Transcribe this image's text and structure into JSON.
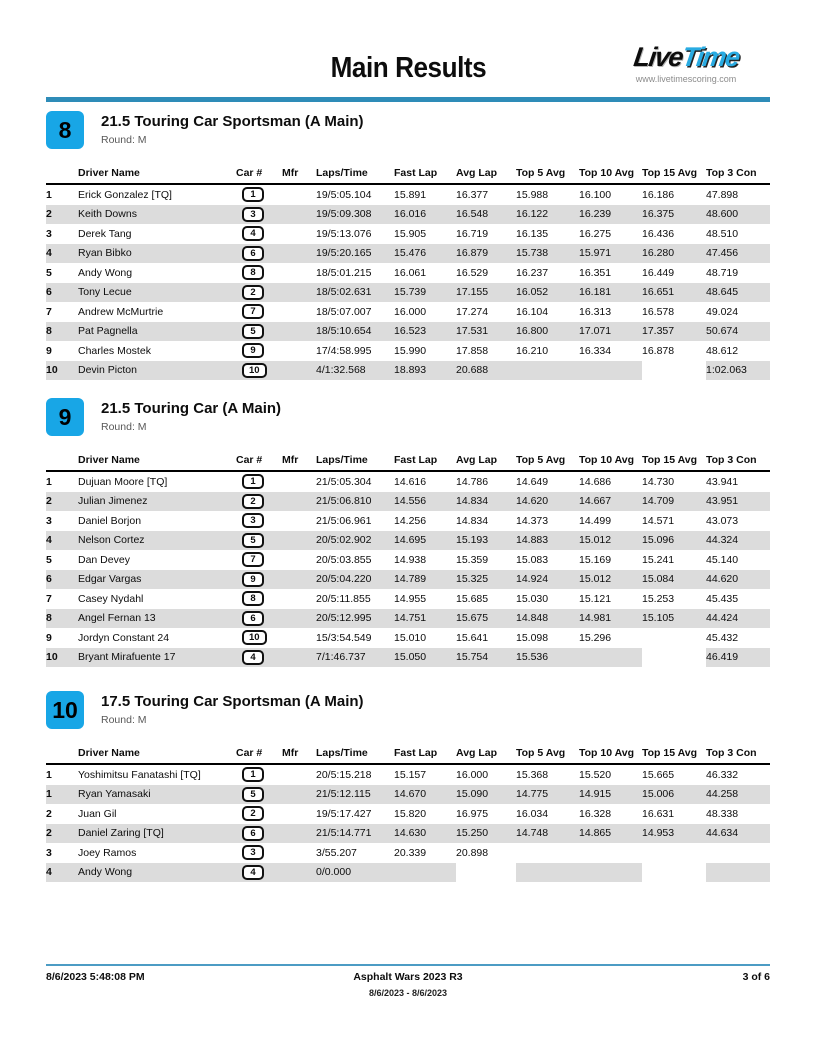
{
  "page": {
    "title": "Main Results",
    "logo": {
      "part1": "Live",
      "part2": "Time",
      "url": "www.livetimescoring.com"
    }
  },
  "colors": {
    "accent": "#18A6E6",
    "rule": "#2E8CB8",
    "stripe": "#DCDCDC",
    "logo_blue": "#29ABE2"
  },
  "columns": [
    "Driver Name",
    "Car #",
    "Mfr",
    "Laps/Time",
    "Fast Lap",
    "Avg Lap",
    "Top 5 Avg",
    "Top 10 Avg",
    "Top 15 Avg",
    "Top 3 Con"
  ],
  "sections": [
    {
      "race_number": "8",
      "title": "21.5 Touring Car Sportsman (A Main)",
      "round": "Round: M",
      "rows": [
        {
          "pos": "1",
          "driver": "Erick Gonzalez [TQ]",
          "car": "1",
          "mfr": "",
          "laps_time": "19/5:05.104",
          "fast_lap": "15.891",
          "avg_lap": "16.377",
          "top5": "15.988",
          "top10": "16.100",
          "top15": "16.186",
          "top3con": "47.898"
        },
        {
          "pos": "2",
          "driver": "Keith Downs",
          "car": "3",
          "mfr": "",
          "laps_time": "19/5:09.308",
          "fast_lap": "16.016",
          "avg_lap": "16.548",
          "top5": "16.122",
          "top10": "16.239",
          "top15": "16.375",
          "top3con": "48.600"
        },
        {
          "pos": "3",
          "driver": "Derek Tang",
          "car": "4",
          "mfr": "",
          "laps_time": "19/5:13.076",
          "fast_lap": "15.905",
          "avg_lap": "16.719",
          "top5": "16.135",
          "top10": "16.275",
          "top15": "16.436",
          "top3con": "48.510"
        },
        {
          "pos": "4",
          "driver": "Ryan Bibko",
          "car": "6",
          "mfr": "",
          "laps_time": "19/5:20.165",
          "fast_lap": "15.476",
          "avg_lap": "16.879",
          "top5": "15.738",
          "top10": "15.971",
          "top15": "16.280",
          "top3con": "47.456"
        },
        {
          "pos": "5",
          "driver": "Andy Wong",
          "car": "8",
          "mfr": "",
          "laps_time": "18/5:01.215",
          "fast_lap": "16.061",
          "avg_lap": "16.529",
          "top5": "16.237",
          "top10": "16.351",
          "top15": "16.449",
          "top3con": "48.719"
        },
        {
          "pos": "6",
          "driver": "Tony Lecue",
          "car": "2",
          "mfr": "",
          "laps_time": "18/5:02.631",
          "fast_lap": "15.739",
          "avg_lap": "17.155",
          "top5": "16.052",
          "top10": "16.181",
          "top15": "16.651",
          "top3con": "48.645"
        },
        {
          "pos": "7",
          "driver": "Andrew McMurtrie",
          "car": "7",
          "mfr": "",
          "laps_time": "18/5:07.007",
          "fast_lap": "16.000",
          "avg_lap": "17.274",
          "top5": "16.104",
          "top10": "16.313",
          "top15": "16.578",
          "top3con": "49.024"
        },
        {
          "pos": "8",
          "driver": "Pat Pagnella",
          "car": "5",
          "mfr": "",
          "laps_time": "18/5:10.654",
          "fast_lap": "16.523",
          "avg_lap": "17.531",
          "top5": "16.800",
          "top10": "17.071",
          "top15": "17.357",
          "top3con": "50.674"
        },
        {
          "pos": "9",
          "driver": "Charles Mostek",
          "car": "9",
          "mfr": "",
          "laps_time": "17/4:58.995",
          "fast_lap": "15.990",
          "avg_lap": "17.858",
          "top5": "16.210",
          "top10": "16.334",
          "top15": "16.878",
          "top3con": "48.612"
        },
        {
          "pos": "10",
          "driver": "Devin Picton",
          "car": "10",
          "mfr": "",
          "laps_time": "4/1:32.568",
          "fast_lap": "18.893",
          "avg_lap": "20.688",
          "top5": "",
          "top10": "",
          "top15": "",
          "top3con": "1:02.063"
        }
      ]
    },
    {
      "race_number": "9",
      "title": "21.5 Touring Car  (A Main)",
      "round": "Round: M",
      "rows": [
        {
          "pos": "1",
          "driver": "Dujuan Moore [TQ]",
          "car": "1",
          "mfr": "",
          "laps_time": "21/5:05.304",
          "fast_lap": "14.616",
          "avg_lap": "14.786",
          "top5": "14.649",
          "top10": "14.686",
          "top15": "14.730",
          "top3con": "43.941"
        },
        {
          "pos": "2",
          "driver": "Julian Jimenez",
          "car": "2",
          "mfr": "",
          "laps_time": "21/5:06.810",
          "fast_lap": "14.556",
          "avg_lap": "14.834",
          "top5": "14.620",
          "top10": "14.667",
          "top15": "14.709",
          "top3con": "43.951"
        },
        {
          "pos": "3",
          "driver": "Daniel Borjon",
          "car": "3",
          "mfr": "",
          "laps_time": "21/5:06.961",
          "fast_lap": "14.256",
          "avg_lap": "14.834",
          "top5": "14.373",
          "top10": "14.499",
          "top15": "14.571",
          "top3con": "43.073"
        },
        {
          "pos": "4",
          "driver": "Nelson Cortez",
          "car": "5",
          "mfr": "",
          "laps_time": "20/5:02.902",
          "fast_lap": "14.695",
          "avg_lap": "15.193",
          "top5": "14.883",
          "top10": "15.012",
          "top15": "15.096",
          "top3con": "44.324"
        },
        {
          "pos": "5",
          "driver": "Dan Devey",
          "car": "7",
          "mfr": "",
          "laps_time": "20/5:03.855",
          "fast_lap": "14.938",
          "avg_lap": "15.359",
          "top5": "15.083",
          "top10": "15.169",
          "top15": "15.241",
          "top3con": "45.140"
        },
        {
          "pos": "6",
          "driver": "Edgar Vargas",
          "car": "9",
          "mfr": "",
          "laps_time": "20/5:04.220",
          "fast_lap": "14.789",
          "avg_lap": "15.325",
          "top5": "14.924",
          "top10": "15.012",
          "top15": "15.084",
          "top3con": "44.620"
        },
        {
          "pos": "7",
          "driver": "Casey Nydahl",
          "car": "8",
          "mfr": "",
          "laps_time": "20/5:11.855",
          "fast_lap": "14.955",
          "avg_lap": "15.685",
          "top5": "15.030",
          "top10": "15.121",
          "top15": "15.253",
          "top3con": "45.435"
        },
        {
          "pos": "8",
          "driver": "Angel Fernan 13",
          "car": "6",
          "mfr": "",
          "laps_time": "20/5:12.995",
          "fast_lap": "14.751",
          "avg_lap": "15.675",
          "top5": "14.848",
          "top10": "14.981",
          "top15": "15.105",
          "top3con": "44.424"
        },
        {
          "pos": "9",
          "driver": "Jordyn Constant 24",
          "car": "10",
          "mfr": "",
          "laps_time": "15/3:54.549",
          "fast_lap": "15.010",
          "avg_lap": "15.641",
          "top5": "15.098",
          "top10": "15.296",
          "top15": "",
          "top3con": "45.432"
        },
        {
          "pos": "10",
          "driver": "Bryant Mirafuente 17",
          "car": "4",
          "mfr": "",
          "laps_time": "7/1:46.737",
          "fast_lap": "15.050",
          "avg_lap": "15.754",
          "top5": "15.536",
          "top10": "",
          "top15": "",
          "top3con": "46.419"
        }
      ]
    },
    {
      "race_number": "10",
      "title": "17.5 Touring Car Sportsman (A Main)",
      "round": "Round: M",
      "rows": [
        {
          "pos": "1",
          "driver": "Yoshimitsu Fanatashi [TQ]",
          "car": "1",
          "mfr": "",
          "laps_time": "20/5:15.218",
          "fast_lap": "15.157",
          "avg_lap": "16.000",
          "top5": "15.368",
          "top10": "15.520",
          "top15": "15.665",
          "top3con": "46.332"
        },
        {
          "pos": "1",
          "driver": "Ryan Yamasaki",
          "car": "5",
          "mfr": "",
          "laps_time": "21/5:12.115",
          "fast_lap": "14.670",
          "avg_lap": "15.090",
          "top5": "14.775",
          "top10": "14.915",
          "top15": "15.006",
          "top3con": "44.258"
        },
        {
          "pos": "2",
          "driver": "Juan Gil",
          "car": "2",
          "mfr": "",
          "laps_time": "19/5:17.427",
          "fast_lap": "15.820",
          "avg_lap": "16.975",
          "top5": "16.034",
          "top10": "16.328",
          "top15": "16.631",
          "top3con": "48.338"
        },
        {
          "pos": "2",
          "driver": "Daniel Zaring [TQ]",
          "car": "6",
          "mfr": "",
          "laps_time": "21/5:14.771",
          "fast_lap": "14.630",
          "avg_lap": "15.250",
          "top5": "14.748",
          "top10": "14.865",
          "top15": "14.953",
          "top3con": "44.634"
        },
        {
          "pos": "3",
          "driver": "Joey Ramos",
          "car": "3",
          "mfr": "",
          "laps_time": "3/55.207",
          "fast_lap": "20.339",
          "avg_lap": "20.898",
          "top5": "",
          "top10": "",
          "top15": "",
          "top3con": ""
        },
        {
          "pos": "4",
          "driver": "Andy Wong",
          "car": "4",
          "mfr": "",
          "laps_time": "0/0.000",
          "fast_lap": "",
          "avg_lap": "",
          "top5": "",
          "top10": "",
          "top15": "",
          "top3con": ""
        }
      ]
    }
  ],
  "footer": {
    "timestamp": "8/6/2023 5:48:08 PM",
    "event": "Asphalt Wars 2023 R3",
    "date_range": "8/6/2023 - 8/6/2023",
    "page_number": "3 of 6"
  }
}
